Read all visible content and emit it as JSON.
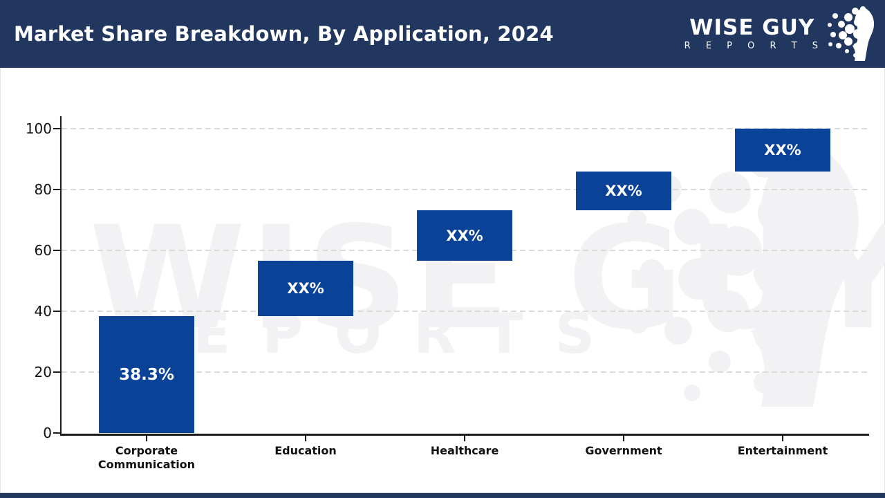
{
  "header": {
    "title": "Market Share Breakdown, By Application, 2024",
    "bg_color": "#21375F",
    "text_color": "#FFFFFF",
    "logo": {
      "line1": "WISE GUY",
      "line2": "R E P O R T S"
    }
  },
  "watermark": {
    "line1": "WISE GUY",
    "line2": "REPORTS"
  },
  "footer": {
    "bar_color": "#21375F"
  },
  "chart_data": {
    "type": "bar",
    "subtype": "waterfall",
    "title": "Market Share Breakdown, By Application, 2024",
    "xlabel": "",
    "ylabel": "",
    "ylim": [
      0,
      100
    ],
    "y_ticks": [
      0,
      20,
      40,
      60,
      80,
      100
    ],
    "grid": "horizontal-dashed",
    "bar_color": "#0A4297",
    "bar_label_color": "#FFFFFF",
    "categories": [
      "Corporate Communication",
      "Education",
      "Healthcare",
      "Government",
      "Entertainment"
    ],
    "segments": [
      {
        "category": "Corporate Communication",
        "tick_lines": [
          "Corporate",
          "Communication"
        ],
        "label": "38.3%",
        "start": 0,
        "end": 38.3
      },
      {
        "category": "Education",
        "tick_lines": [
          "Education"
        ],
        "label": "XX%",
        "start": 38.3,
        "end": 56.5
      },
      {
        "category": "Healthcare",
        "tick_lines": [
          "Healthcare"
        ],
        "label": "XX%",
        "start": 56.5,
        "end": 73.2
      },
      {
        "category": "Government",
        "tick_lines": [
          "Government"
        ],
        "label": "XX%",
        "start": 73.2,
        "end": 86.0
      },
      {
        "category": "Entertainment",
        "tick_lines": [
          "Entertainment"
        ],
        "label": "XX%",
        "start": 86.0,
        "end": 100.0
      }
    ]
  }
}
